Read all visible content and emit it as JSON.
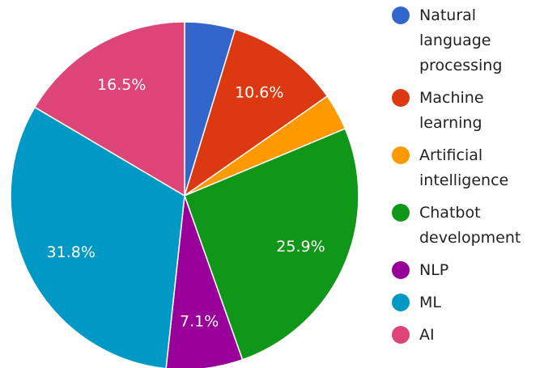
{
  "chart_data": {
    "type": "pie",
    "categories": [
      "Natural language processing",
      "Machine learning",
      "Artificial intelligence",
      "Chatbot development",
      "NLP",
      "ML",
      "AI"
    ],
    "values": [
      4.7,
      10.6,
      3.4,
      25.9,
      7.1,
      31.8,
      16.5
    ],
    "value_labels": [
      null,
      "10.6%",
      null,
      "25.9%",
      "7.1%",
      "31.8%",
      "16.5%"
    ],
    "colors": [
      "#3366cc",
      "#dc3912",
      "#ff9900",
      "#109618",
      "#990099",
      "#0099c6",
      "#dd4477"
    ],
    "legend": "right"
  }
}
